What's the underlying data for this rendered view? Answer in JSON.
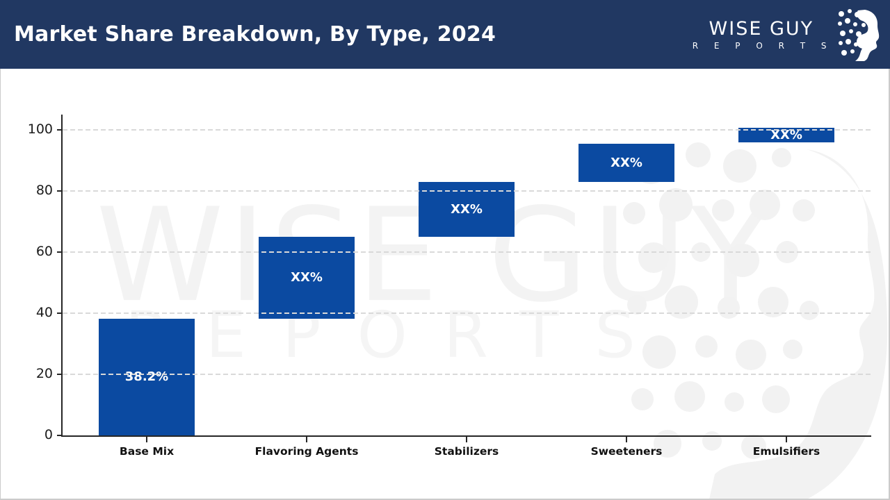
{
  "header": {
    "title": "Market Share Breakdown, By Type, 2024",
    "logo_line1": "WISE GUY",
    "logo_line2": "R E P O R T S"
  },
  "watermark": {
    "line1": "WISE GUY",
    "line2": "REPORTS"
  },
  "chart_data": {
    "type": "bar",
    "subtype": "waterfall",
    "title": "Market Share Breakdown, By Type, 2024",
    "categories": [
      "Base Mix",
      "Flavoring Agents",
      "Stabilizers",
      "Sweeteners",
      "Emulsifiers"
    ],
    "segments": [
      {
        "category": "Base Mix",
        "start": 0,
        "end": 38.2,
        "label": "38.2%"
      },
      {
        "category": "Flavoring Agents",
        "start": 38.2,
        "end": 65,
        "label": "XX%"
      },
      {
        "category": "Stabilizers",
        "start": 65,
        "end": 83,
        "label": "XX%"
      },
      {
        "category": "Sweeteners",
        "start": 83,
        "end": 95.5,
        "label": "XX%"
      },
      {
        "category": "Emulsifiers",
        "start": 96,
        "end": 100.7,
        "label": "XX%"
      }
    ],
    "yticks": [
      0,
      20,
      40,
      60,
      80,
      100
    ],
    "ylim": [
      0,
      105
    ],
    "xlabel": "",
    "ylabel": "",
    "grid": "horizontal-dashed",
    "legend": "none",
    "bar_color": "#0b4aa1",
    "bar_label_color": "#ffffff",
    "grid_color": "#d9d9d9",
    "axis_color": "#262626"
  },
  "colors": {
    "header_bg": "#213862",
    "bar": "#0b4aa1",
    "watermark": "#f3f3f3",
    "page_bg": "#ffffff"
  }
}
